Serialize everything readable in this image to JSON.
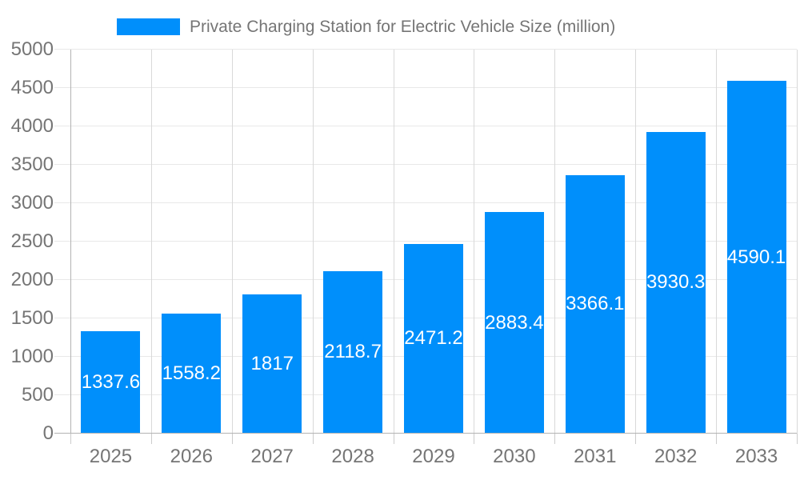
{
  "legend": {
    "label": "Private Charging Station for Electric Vehicle Size (million)",
    "marker_color": "#008FFB"
  },
  "chart_data": {
    "type": "bar",
    "title": "Private Charging Station for Electric Vehicle Size (million)",
    "categories": [
      "2025",
      "2026",
      "2027",
      "2028",
      "2029",
      "2030",
      "2031",
      "2032",
      "2033"
    ],
    "series": [
      {
        "name": "Private Charging Station for Electric Vehicle Size (million)",
        "values": [
          1337.6,
          1558.2,
          1817,
          2118.7,
          2471.2,
          2883.4,
          3366.1,
          3930.3,
          4590.1
        ],
        "data_labels": [
          "1337.6",
          "1558.2",
          "1817",
          "2118.7",
          "2471.2",
          "2883.4",
          "3366.1",
          "3930.3",
          "4590.1"
        ],
        "color": "#008FFB"
      }
    ],
    "xlabel": "",
    "ylabel": "",
    "ylim": [
      0,
      5000
    ],
    "y_ticks": [
      0,
      500,
      1000,
      1500,
      2000,
      2500,
      3000,
      3500,
      4000,
      4500,
      5000
    ],
    "grid": true,
    "legend_position": "top",
    "data_label_position": "inside-center",
    "data_label_color": "#FFFFFF"
  },
  "colors": {
    "background": "#FFFFFF",
    "bar": "#008FFB",
    "axis_text": "#757575",
    "data_label_text": "#FFFFFF",
    "axis_line": "#B3B3B3",
    "grid_horizontal": "#E8E8E8",
    "grid_vertical": "#D9D9D9",
    "tick": "#CCCCCC"
  }
}
